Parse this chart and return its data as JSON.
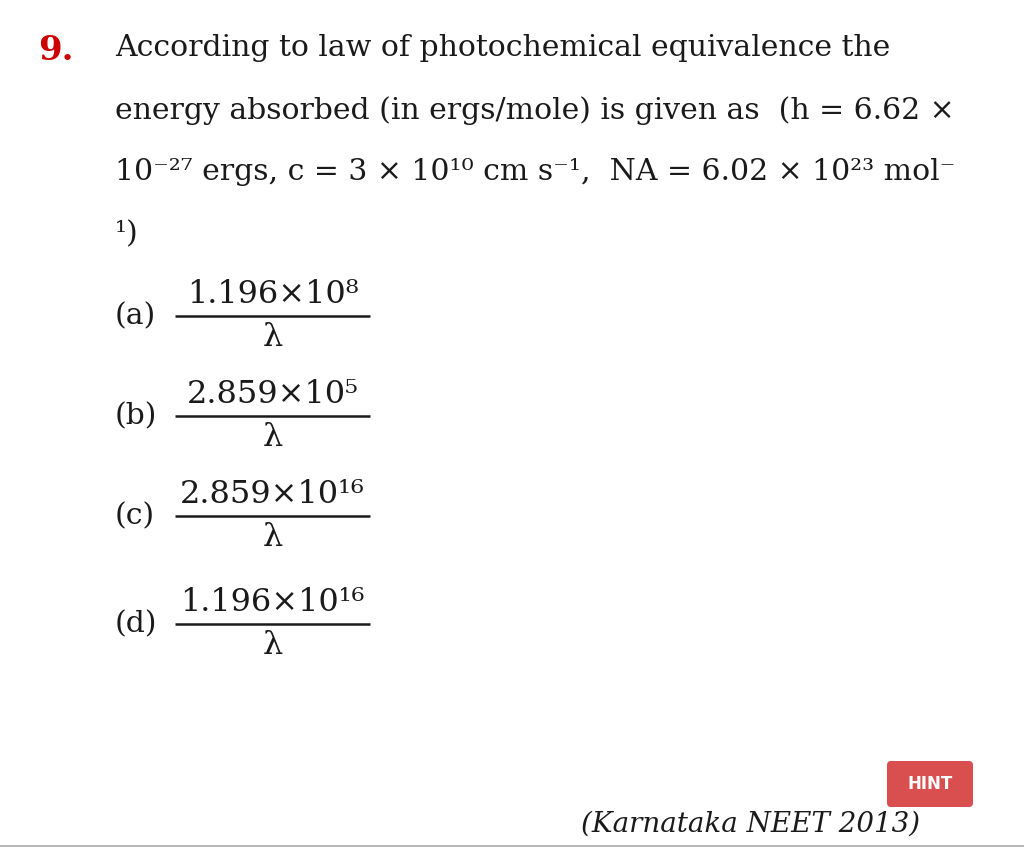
{
  "background_color": "#ffffff",
  "question_number": "9.",
  "question_number_color": "#cc0000",
  "text_color": "#1a1a1a",
  "q_line1": "According to law of photochemical equivalence the",
  "q_line2": "energy absorbed (in ergs/mole) is given as  (h = 6.62 ×",
  "q_line3": "10⁻²⁷ ergs, c = 3 × 10¹⁰ cm s⁻¹,  NA = 6.02 × 10²³ mol⁻",
  "q_line4": "¹)",
  "options": [
    {
      "label": "(a)",
      "numerator": "1.196×10⁸",
      "denominator": "λ"
    },
    {
      "label": "(b)",
      "numerator": "2.859×10⁵",
      "denominator": "λ"
    },
    {
      "label": "(c)",
      "numerator": "2.859×10¹⁶",
      "denominator": "λ"
    },
    {
      "label": "(d)",
      "numerator": "1.196×10¹⁶",
      "denominator": "λ"
    }
  ],
  "footer_text": "(Karnataka NEET 2013)",
  "hint_text": "HINT",
  "hint_color": "#d94f4f",
  "font_size_q": 21.5,
  "font_size_opt_num": 23,
  "font_size_opt_denom": 23,
  "font_size_label": 21.5,
  "font_size_footer": 20,
  "font_size_hint": 12
}
